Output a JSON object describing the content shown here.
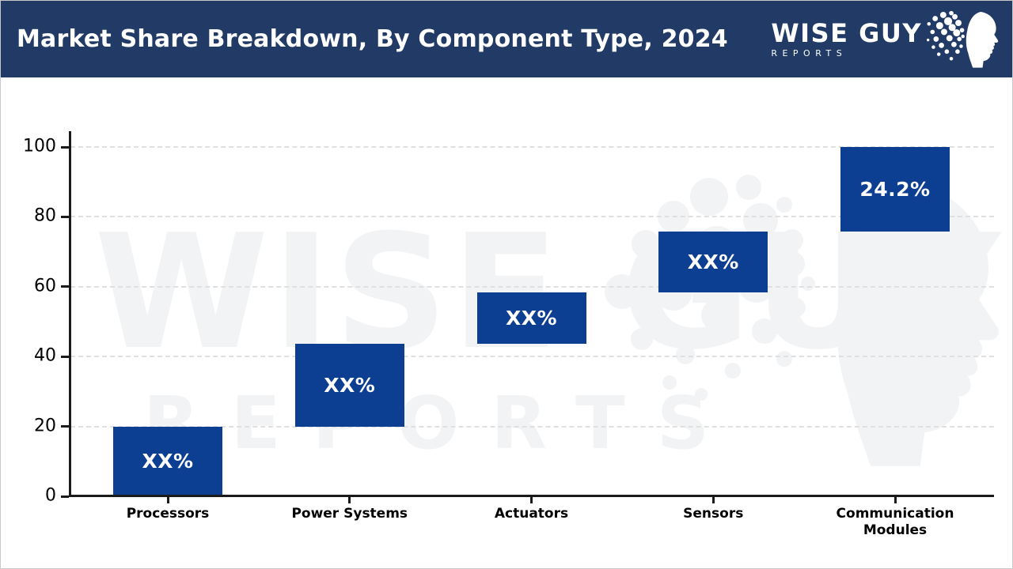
{
  "header": {
    "title": "Market Share Breakdown, By Component Type, 2024",
    "logo": {
      "brand_top": "WISE GUY",
      "brand_bottom": "REPORTS"
    }
  },
  "watermark": {
    "line1": "WISE GUY",
    "line2": "REPORTS"
  },
  "colors": {
    "header_bg": "#213a66",
    "bar": "#0c3e92",
    "bar_label": "#ffffff",
    "grid": "#e0e0e0",
    "axis": "#1a1a1a",
    "watermark": "#f2f3f5"
  },
  "chart_data": {
    "type": "bar",
    "subtype": "waterfall",
    "title": "Market Share Breakdown, By Component Type, 2024",
    "unit": "percent",
    "categories": [
      "Processors",
      "Power Systems",
      "Actuators",
      "Sensors",
      "Communication Modules"
    ],
    "segments": [
      {
        "category": "Processors",
        "start": 0,
        "end": 20,
        "label": "XX%"
      },
      {
        "category": "Power Systems",
        "start": 20,
        "end": 43.6,
        "label": "XX%"
      },
      {
        "category": "Actuators",
        "start": 43.6,
        "end": 58.3,
        "label": "XX%"
      },
      {
        "category": "Sensors",
        "start": 58.3,
        "end": 75.8,
        "label": "XX%"
      },
      {
        "category": "Communication Modules",
        "start": 75.8,
        "end": 100,
        "label": "24.2%",
        "value": 24.2
      }
    ],
    "yticks": [
      0,
      20,
      40,
      60,
      80,
      100
    ],
    "ylim": [
      0,
      104.5
    ],
    "xlabel": "",
    "ylabel": "",
    "grid": "horizontal-dashed",
    "legend": null
  }
}
